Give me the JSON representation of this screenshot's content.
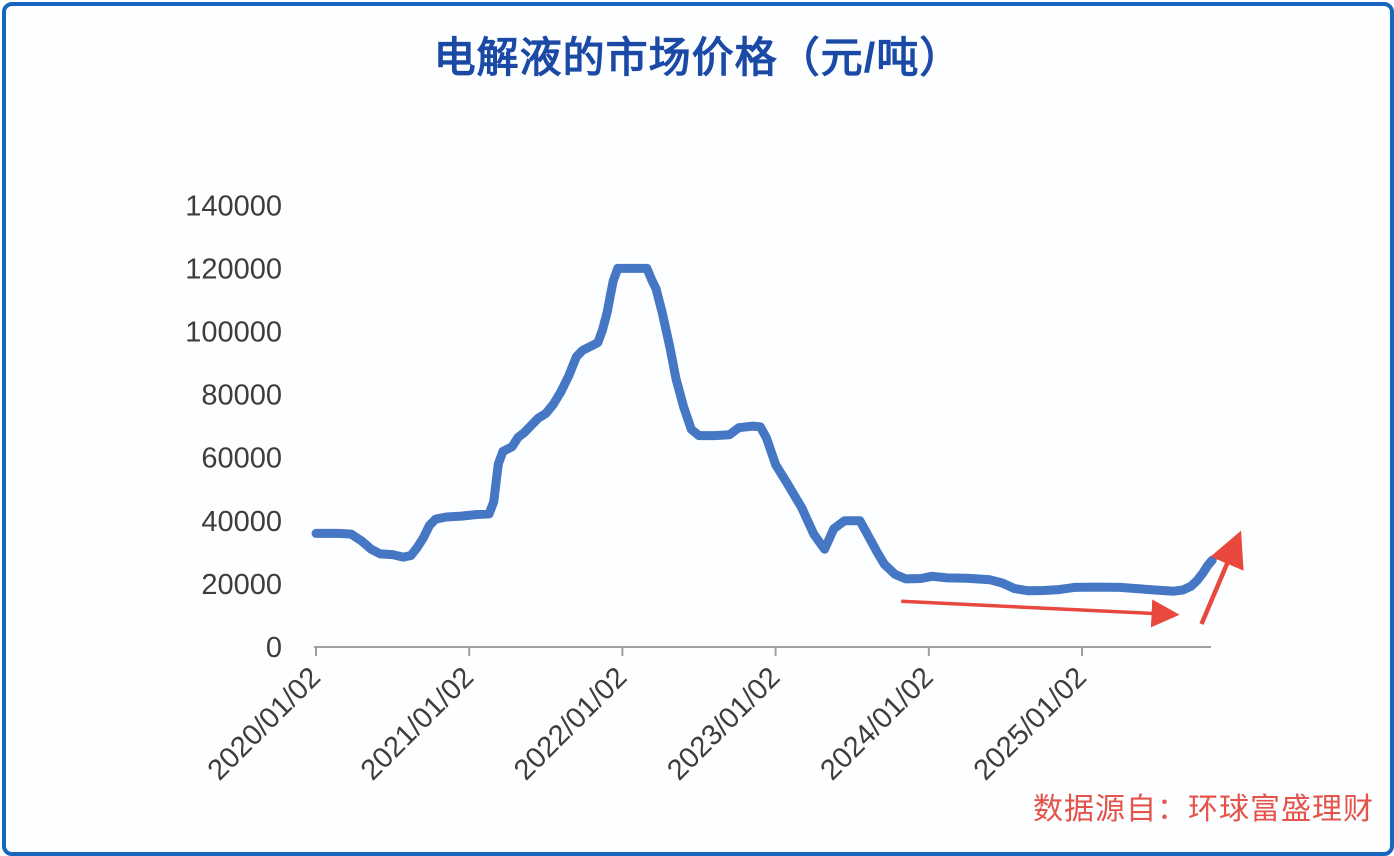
{
  "frame": {
    "border_color": "#1766bd",
    "background": "#fdfeff"
  },
  "title": {
    "text": "电解液的市场价格（元/吨）",
    "color": "#1a4aa5"
  },
  "source": {
    "text": "数据源自：环球富盛理财",
    "color": "#e4544a"
  },
  "chart_data": {
    "type": "line",
    "title": "电解液的市场价格（元/吨）",
    "ylabel": "",
    "xlabel": "",
    "grid": false,
    "legend": "none",
    "y_axis": {
      "ticks": [
        0,
        20000,
        40000,
        60000,
        80000,
        100000,
        120000,
        140000
      ],
      "range": [
        0,
        140000
      ],
      "label_color": "#3d3d3d"
    },
    "x_axis": {
      "tick_labels": [
        "2020/01/02",
        "2021/01/02",
        "2022/01/02",
        "2023/01/02",
        "2024/01/02",
        "2025/01/02"
      ],
      "label_rotation_deg": 45,
      "axis_color": "#a0a0a0",
      "label_color": "#3d3d3d"
    },
    "series": [
      {
        "name": "电解液市场价格",
        "color": "#4577c4",
        "stroke_width": 9,
        "points_format": "[years_since_2020_01_02, price_yuan_per_ton]",
        "points": [
          [
            0.0,
            36000
          ],
          [
            0.15,
            36000
          ],
          [
            0.23,
            35800
          ],
          [
            0.3,
            33500
          ],
          [
            0.36,
            31000
          ],
          [
            0.42,
            29500
          ],
          [
            0.5,
            29300
          ],
          [
            0.57,
            28500
          ],
          [
            0.62,
            29000
          ],
          [
            0.66,
            31500
          ],
          [
            0.7,
            34500
          ],
          [
            0.74,
            38500
          ],
          [
            0.78,
            40500
          ],
          [
            0.85,
            41200
          ],
          [
            0.95,
            41500
          ],
          [
            1.05,
            42000
          ],
          [
            1.13,
            42200
          ],
          [
            1.16,
            46000
          ],
          [
            1.19,
            58000
          ],
          [
            1.22,
            62000
          ],
          [
            1.28,
            63500
          ],
          [
            1.32,
            66500
          ],
          [
            1.36,
            68000
          ],
          [
            1.4,
            70000
          ],
          [
            1.45,
            72500
          ],
          [
            1.5,
            74000
          ],
          [
            1.55,
            77000
          ],
          [
            1.6,
            81000
          ],
          [
            1.65,
            86000
          ],
          [
            1.7,
            92000
          ],
          [
            1.74,
            94000
          ],
          [
            1.8,
            95500
          ],
          [
            1.84,
            96500
          ],
          [
            1.87,
            100500
          ],
          [
            1.9,
            106000
          ],
          [
            1.92,
            111000
          ],
          [
            1.94,
            116000
          ],
          [
            1.97,
            120000
          ],
          [
            2.05,
            120000
          ],
          [
            2.16,
            120000
          ],
          [
            2.19,
            116500
          ],
          [
            2.22,
            113500
          ],
          [
            2.26,
            106000
          ],
          [
            2.31,
            95000
          ],
          [
            2.35,
            85000
          ],
          [
            2.4,
            76000
          ],
          [
            2.45,
            69000
          ],
          [
            2.5,
            67000
          ],
          [
            2.6,
            67000
          ],
          [
            2.7,
            67300
          ],
          [
            2.76,
            69500
          ],
          [
            2.85,
            70000
          ],
          [
            2.9,
            69800
          ],
          [
            2.94,
            66300
          ],
          [
            3.0,
            57800
          ],
          [
            3.08,
            51500
          ],
          [
            3.17,
            44200
          ],
          [
            3.25,
            35700
          ],
          [
            3.32,
            31000
          ],
          [
            3.38,
            37500
          ],
          [
            3.45,
            40000
          ],
          [
            3.55,
            40000
          ],
          [
            3.6,
            35700
          ],
          [
            3.66,
            30300
          ],
          [
            3.71,
            26200
          ],
          [
            3.78,
            23000
          ],
          [
            3.85,
            21600
          ],
          [
            3.95,
            21700
          ],
          [
            4.02,
            22400
          ],
          [
            4.12,
            21900
          ],
          [
            4.25,
            21800
          ],
          [
            4.4,
            21300
          ],
          [
            4.48,
            20300
          ],
          [
            4.56,
            18500
          ],
          [
            4.65,
            17800
          ],
          [
            4.75,
            17900
          ],
          [
            4.85,
            18200
          ],
          [
            4.95,
            18900
          ],
          [
            5.1,
            19000
          ],
          [
            5.25,
            18900
          ],
          [
            5.38,
            18400
          ],
          [
            5.5,
            18000
          ],
          [
            5.6,
            17700
          ],
          [
            5.66,
            18100
          ],
          [
            5.71,
            19200
          ],
          [
            5.75,
            21000
          ],
          [
            5.79,
            23500
          ],
          [
            5.82,
            25800
          ],
          [
            5.85,
            27500
          ]
        ]
      }
    ],
    "annotations": {
      "arrows": [
        {
          "note": "gradual-decline-arrow",
          "from_t": 3.82,
          "from_v": 14500,
          "to_t": 5.6,
          "to_v": 10300,
          "color": "#e8483e",
          "width": 3.5
        },
        {
          "note": "sharp-rebound-arrow",
          "from_t": 5.78,
          "from_v": 7300,
          "to_t": 6.02,
          "to_v": 34800,
          "color": "#e8483e",
          "width": 4.5
        }
      ]
    }
  }
}
